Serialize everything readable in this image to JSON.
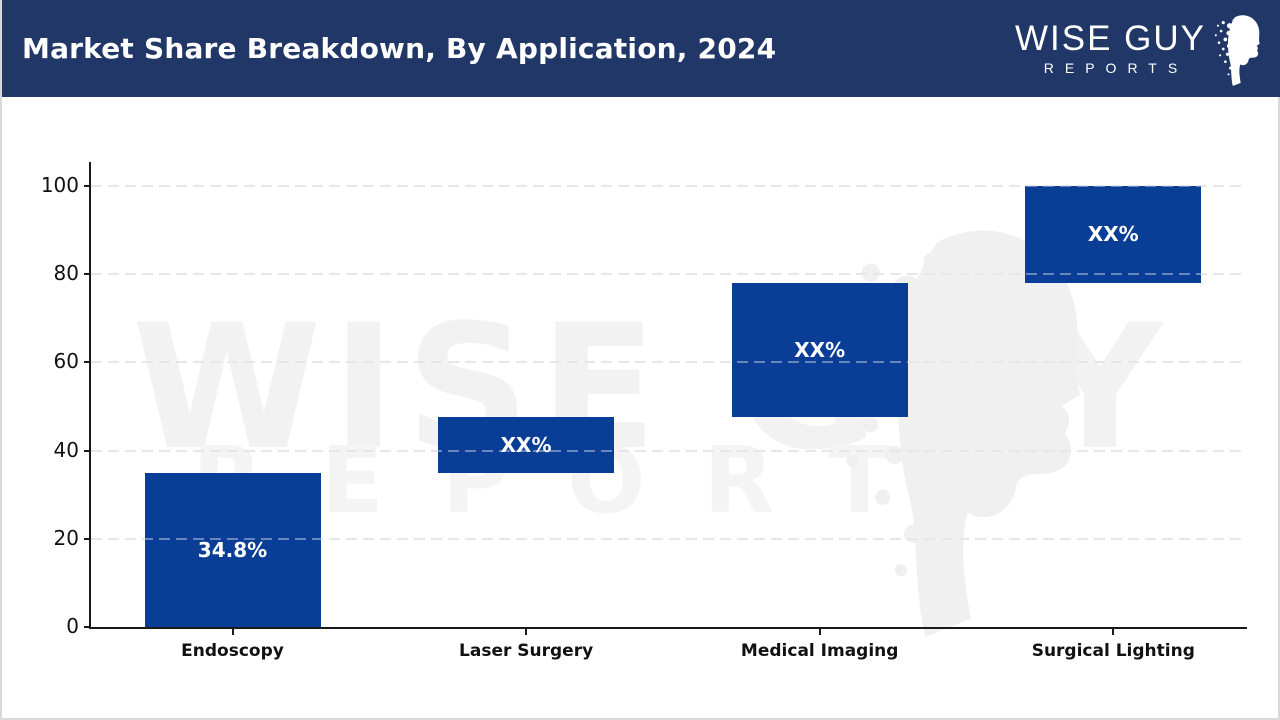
{
  "header": {
    "title": "Market Share Breakdown, By Application, 2024",
    "logo": {
      "line1": "WISE GUY",
      "line2": "REPORTS"
    }
  },
  "watermark": {
    "line1": "WISE GUY",
    "line2": "REPORTS"
  },
  "chart_data": {
    "type": "bar",
    "subtype": "waterfall",
    "title": "Market Share Breakdown, By Application, 2024",
    "categories": [
      "Endoscopy",
      "Laser Surgery",
      "Medical Imaging",
      "Surgical Lighting"
    ],
    "bars": [
      {
        "category": "Endoscopy",
        "start": 0,
        "end": 34.8,
        "label": "34.8%"
      },
      {
        "category": "Laser Surgery",
        "start": 34.8,
        "end": 47.5,
        "label": "XX%"
      },
      {
        "category": "Medical Imaging",
        "start": 47.5,
        "end": 78,
        "label": "XX%"
      },
      {
        "category": "Surgical Lighting",
        "start": 78,
        "end": 100,
        "label": "XX%"
      }
    ],
    "yticks": [
      0,
      20,
      40,
      60,
      80,
      100
    ],
    "ylim": [
      0,
      105.4
    ],
    "xlabel": "",
    "ylabel": "",
    "grid": "dashed-horizontal",
    "legend": "none",
    "colors": {
      "bar": "#0a3e96",
      "bar_label": "#ffffff",
      "axis": "#1a1a1a",
      "gridline": "#d8d8d8",
      "header_bg": "#203768",
      "header_text": "#ffffff",
      "watermark": "#f2f2f2"
    }
  }
}
